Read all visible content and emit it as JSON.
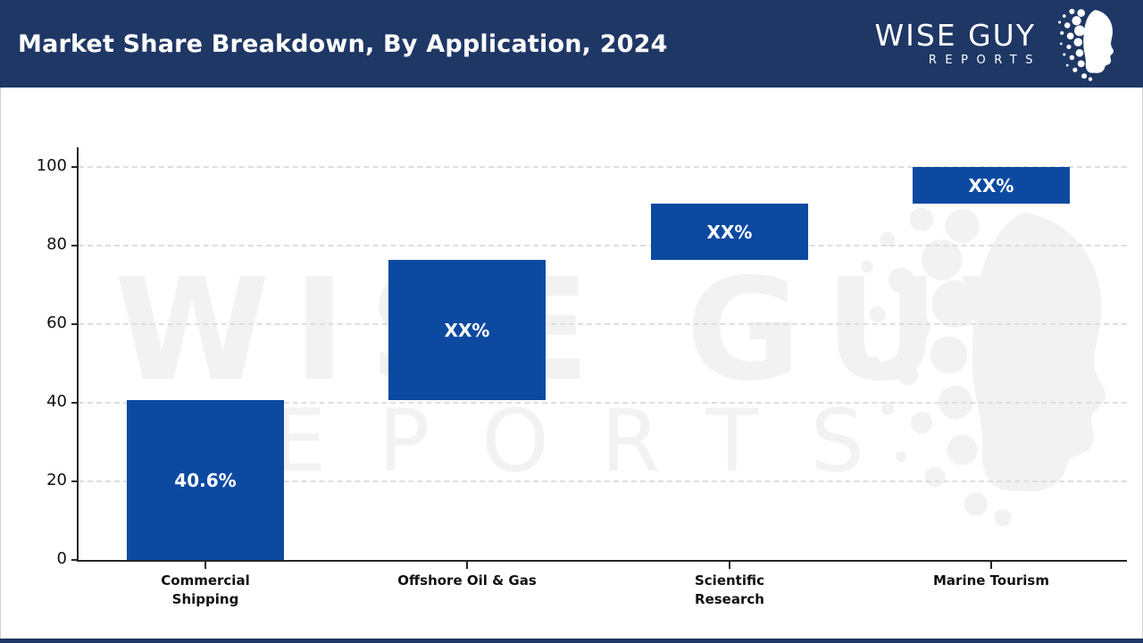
{
  "header": {
    "title": "Market Share Breakdown, By Application, 2024",
    "logo": {
      "line1": "WISE GUY",
      "line2": "REPORTS"
    }
  },
  "watermark": {
    "line1": "WISE GUY",
    "line2": "REPORTS"
  },
  "colors": {
    "header_bg": "#1f3765",
    "bar": "#0c4aa1",
    "grid": "#dedede",
    "axis": "#262626",
    "watermark": "#f2f2f2",
    "bar_label": "#ffffff"
  },
  "chart_data": {
    "type": "bar",
    "subtype": "waterfall",
    "title": "Market Share Breakdown, By Application, 2024",
    "categories": [
      "Commercial Shipping",
      "Offshore Oil & Gas",
      "Scientific Research",
      "Marine Tourism"
    ],
    "category_lines": [
      [
        "Commercial",
        "Shipping"
      ],
      [
        "Offshore Oil & Gas"
      ],
      [
        "Scientific",
        "Research"
      ],
      [
        "Marine Tourism"
      ]
    ],
    "bars": [
      {
        "category": "Commercial Shipping",
        "start": 0,
        "end": 40.6,
        "label": "40.6%"
      },
      {
        "category": "Offshore Oil & Gas",
        "start": 40.6,
        "end": 76.3,
        "label": "XX%"
      },
      {
        "category": "Scientific Research",
        "start": 76.3,
        "end": 90.6,
        "label": "XX%"
      },
      {
        "category": "Marine Tourism",
        "start": 90.6,
        "end": 100,
        "label": "XX%"
      }
    ],
    "ylim": [
      0,
      105
    ],
    "yticks": [
      0,
      20,
      40,
      60,
      80,
      100
    ],
    "grid": "dashed-horizontal",
    "legend": "none",
    "bar_color": "#0c4aa1",
    "label_color": "#ffffff"
  }
}
